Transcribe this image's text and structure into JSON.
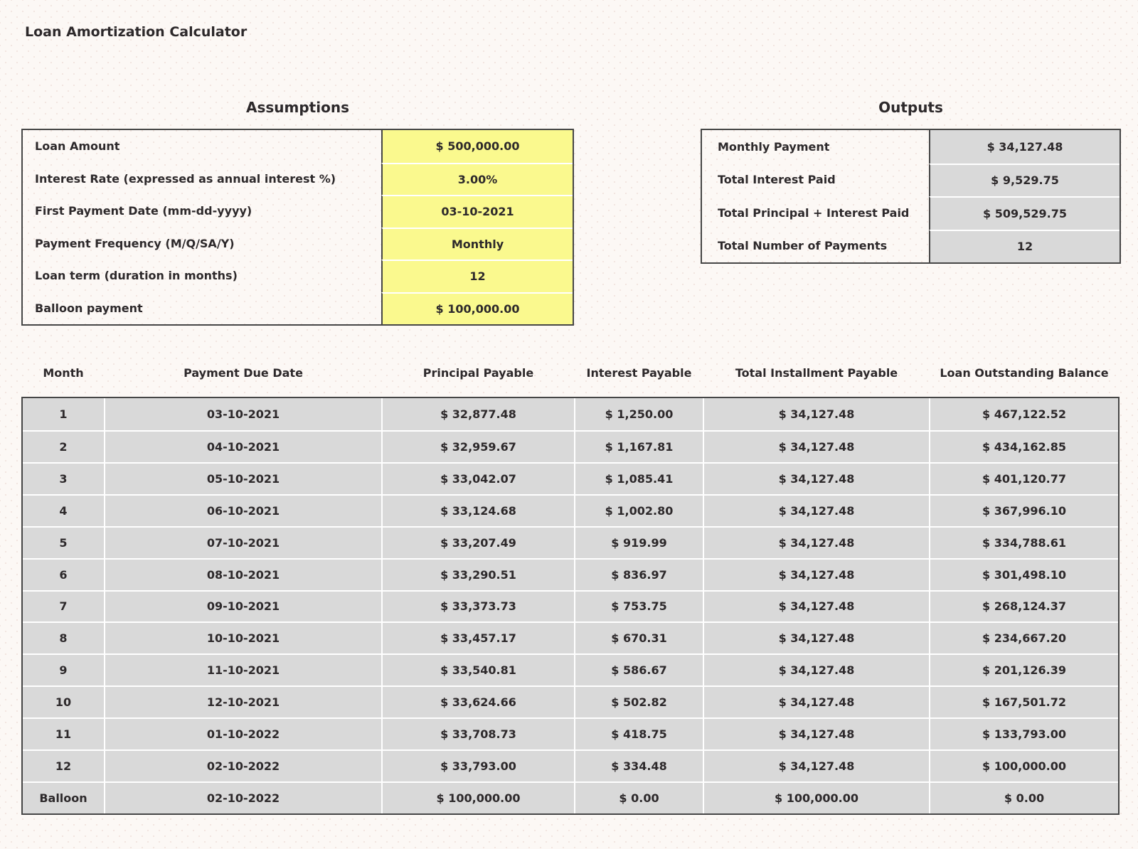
{
  "page": {
    "title": "Loan Amortization Calculator"
  },
  "assumptions": {
    "heading": "Assumptions",
    "rows": [
      {
        "label": "Loan Amount",
        "value": "$ 500,000.00"
      },
      {
        "label": "Interest Rate (expressed as annual interest %)",
        "value": "3.00%"
      },
      {
        "label": "First Payment Date (mm-dd-yyyy)",
        "value": "03-10-2021"
      },
      {
        "label": "Payment Frequency (M/Q/SA/Y)",
        "value": "Monthly"
      },
      {
        "label": "Loan term (duration in months)",
        "value": "12"
      },
      {
        "label": "Balloon payment",
        "value": "$ 100,000.00"
      }
    ]
  },
  "outputs": {
    "heading": "Outputs",
    "rows": [
      {
        "label": "Monthly Payment",
        "value": "$ 34,127.48"
      },
      {
        "label": "Total Interest Paid",
        "value": "$ 9,529.75"
      },
      {
        "label": "Total Principal + Interest Paid",
        "value": "$ 509,529.75"
      },
      {
        "label": "Total Number of Payments",
        "value": "12"
      }
    ]
  },
  "schedule": {
    "columns": [
      "Month",
      "Payment Due Date",
      "Principal Payable",
      "Interest Payable",
      "Total Installment Payable",
      "Loan Outstanding Balance"
    ],
    "rows": [
      [
        "1",
        "03-10-2021",
        "$ 32,877.48",
        "$ 1,250.00",
        "$ 34,127.48",
        "$ 467,122.52"
      ],
      [
        "2",
        "04-10-2021",
        "$ 32,959.67",
        "$ 1,167.81",
        "$ 34,127.48",
        "$ 434,162.85"
      ],
      [
        "3",
        "05-10-2021",
        "$ 33,042.07",
        "$ 1,085.41",
        "$ 34,127.48",
        "$ 401,120.77"
      ],
      [
        "4",
        "06-10-2021",
        "$ 33,124.68",
        "$ 1,002.80",
        "$ 34,127.48",
        "$ 367,996.10"
      ],
      [
        "5",
        "07-10-2021",
        "$ 33,207.49",
        "$ 919.99",
        "$ 34,127.48",
        "$ 334,788.61"
      ],
      [
        "6",
        "08-10-2021",
        "$ 33,290.51",
        "$ 836.97",
        "$ 34,127.48",
        "$ 301,498.10"
      ],
      [
        "7",
        "09-10-2021",
        "$ 33,373.73",
        "$ 753.75",
        "$ 34,127.48",
        "$ 268,124.37"
      ],
      [
        "8",
        "10-10-2021",
        "$ 33,457.17",
        "$ 670.31",
        "$ 34,127.48",
        "$ 234,667.20"
      ],
      [
        "9",
        "11-10-2021",
        "$ 33,540.81",
        "$ 586.67",
        "$ 34,127.48",
        "$ 201,126.39"
      ],
      [
        "10",
        "12-10-2021",
        "$ 33,624.66",
        "$ 502.82",
        "$ 34,127.48",
        "$ 167,501.72"
      ],
      [
        "11",
        "01-10-2022",
        "$ 33,708.73",
        "$ 418.75",
        "$ 34,127.48",
        "$ 133,793.00"
      ],
      [
        "12",
        "02-10-2022",
        "$ 33,793.00",
        "$ 334.48",
        "$ 34,127.48",
        "$ 100,000.00"
      ],
      [
        "Balloon",
        "02-10-2022",
        "$ 100,000.00",
        "$ 0.00",
        "$ 100,000.00",
        "$ 0.00"
      ]
    ]
  },
  "colors": {
    "input_fill": "#FAF98E",
    "output_fill": "#D9D9D9",
    "border_dark": "#464646",
    "grid_white": "#FFFFFF"
  }
}
